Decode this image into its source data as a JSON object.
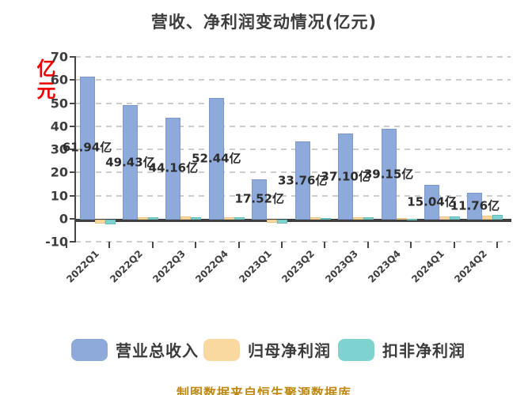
{
  "chart_data": {
    "type": "bar",
    "title": "营收、净利润变动情况(亿元)",
    "y_unit_label": "亿元",
    "categories": [
      "2022Q1",
      "2022Q2",
      "2022Q3",
      "2022Q4",
      "2023Q1",
      "2023Q2",
      "2023Q3",
      "2023Q4",
      "2024Q1",
      "2024Q2"
    ],
    "series": [
      {
        "name": "营业总收入",
        "color": "#8EAADB",
        "values": [
          61.94,
          49.43,
          44.16,
          52.44,
          17.52,
          33.76,
          37.1,
          39.15,
          15.04,
          11.76
        ],
        "labels": [
          "61.94亿",
          "49.43亿",
          "44.16亿",
          "52.44亿",
          "17.52亿",
          "33.76亿",
          "37.10亿",
          "39.15亿",
          "15.04亿",
          "11.76亿"
        ]
      },
      {
        "name": "归母净利润",
        "color": "#FAD9A1",
        "values": [
          -1.6,
          1.1,
          1.3,
          1.0,
          -1.3,
          0.9,
          1.1,
          0.6,
          1.2,
          1.8
        ]
      },
      {
        "name": "扣非净利润",
        "color": "#7ED3D0",
        "values": [
          -1.9,
          0.9,
          1.1,
          0.9,
          -1.6,
          0.7,
          0.9,
          0.5,
          1.4,
          2.2
        ]
      }
    ],
    "ylim": [
      -10,
      70
    ],
    "yticks": [
      70,
      60,
      50,
      40,
      30,
      20,
      10,
      0,
      -10
    ],
    "grid": "dashed-horizontal",
    "legend_position": "bottom"
  },
  "watermark": {
    "text": "制图数据来自恒生聚源数据库",
    "color": "#BE8A14"
  }
}
